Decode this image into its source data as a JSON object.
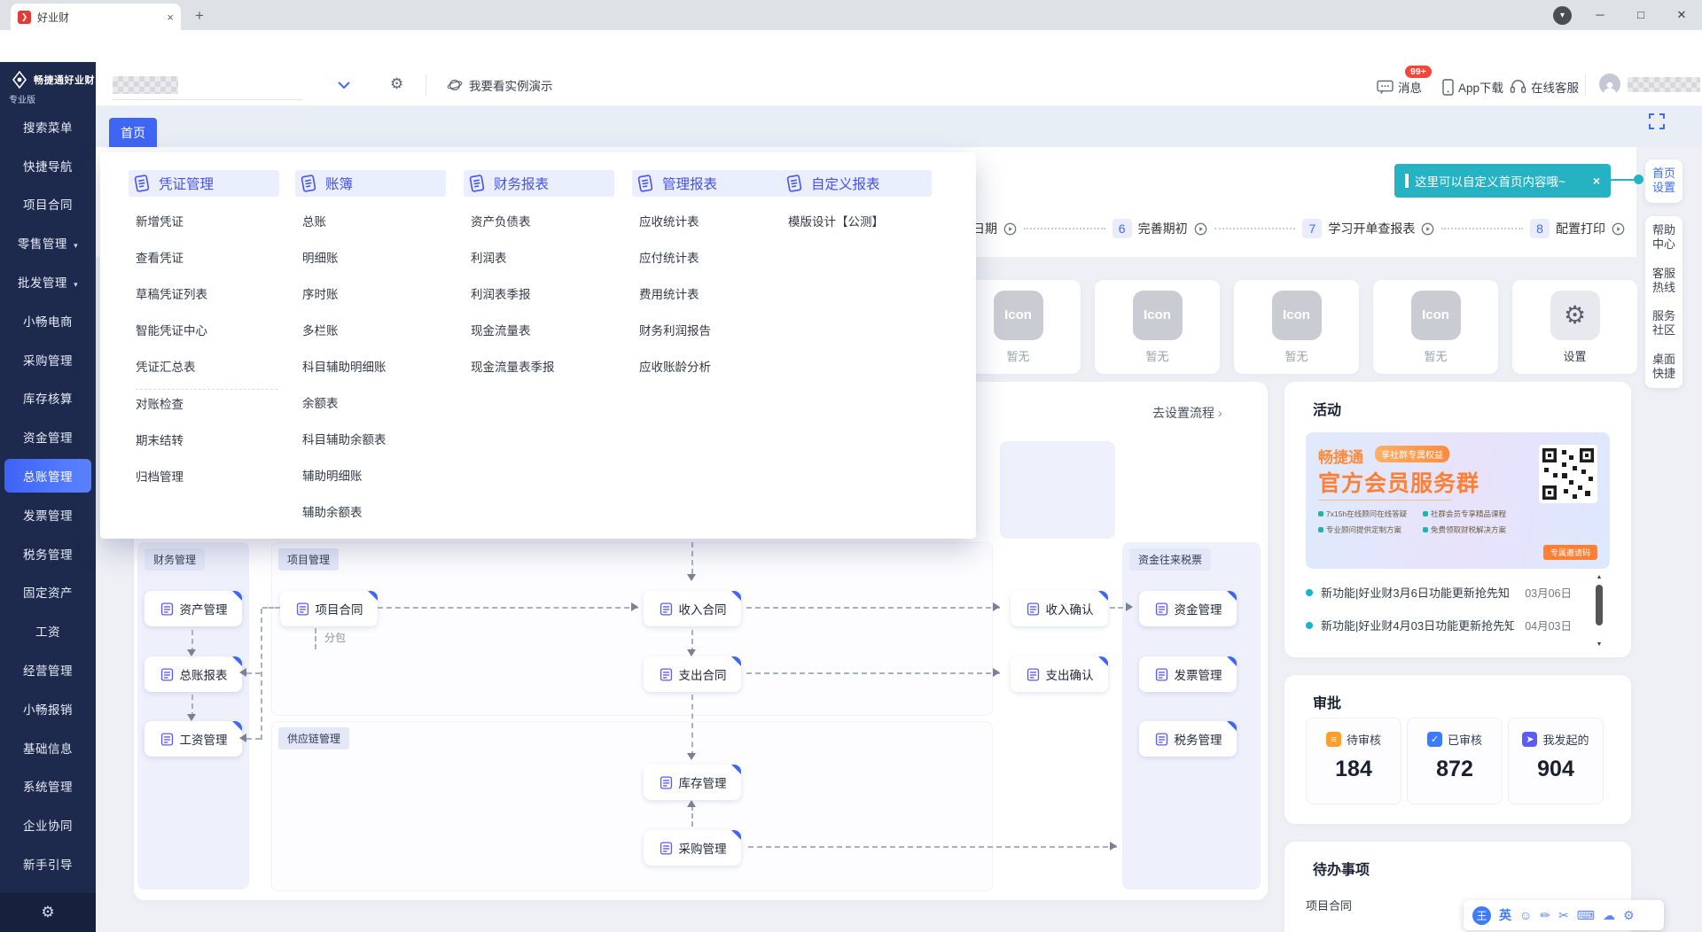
{
  "browser": {
    "tab_title": "好业财",
    "url": "cloud.chanjet.com/cc/u6d89qwnryel/57bfskchat/index.html#/home?pageId=home&pageParams=%7B\"activeFromTab\"%3Atrue%7D&tabId=home&_k=8ikxxp"
  },
  "header": {
    "demo_label": "我要看实例演示",
    "messages_label": "消息",
    "messages_badge": "99+",
    "app_download_label": "App下载",
    "online_service_label": "在线客服"
  },
  "sidebar": {
    "logo_title": "畅捷通好业财",
    "logo_sub": "专业版",
    "items": [
      {
        "label": "搜索菜单"
      },
      {
        "label": "快捷导航"
      },
      {
        "label": "项目合同"
      },
      {
        "label": "零售管理",
        "caret": true
      },
      {
        "label": "批发管理",
        "caret": true
      },
      {
        "label": "小畅电商"
      },
      {
        "label": "采购管理"
      },
      {
        "label": "库存核算"
      },
      {
        "label": "资金管理"
      },
      {
        "label": "总账管理",
        "active": true
      },
      {
        "label": "发票管理"
      },
      {
        "label": "税务管理"
      },
      {
        "label": "固定资产"
      },
      {
        "label": "工资"
      },
      {
        "label": "经营管理"
      },
      {
        "label": "小畅报销"
      },
      {
        "label": "基础信息"
      },
      {
        "label": "系统管理"
      },
      {
        "label": "企业协同"
      },
      {
        "label": "新手引导"
      }
    ]
  },
  "tabs": {
    "home": "首页"
  },
  "megamenu": {
    "columns": [
      {
        "title": "凭证管理",
        "divider_after": 4,
        "items": [
          "新增凭证",
          "查看凭证",
          "草稿凭证列表",
          "智能凭证中心",
          "凭证汇总表",
          "对账检查",
          "期末结转",
          "归档管理"
        ]
      },
      {
        "title": "账簿",
        "items": [
          "总账",
          "明细账",
          "序时账",
          "多栏账",
          "科目辅助明细账",
          "余额表",
          "科目辅助余额表",
          "辅助明细账",
          "辅助余额表"
        ]
      },
      {
        "title": "财务报表",
        "items": [
          "资产负债表",
          "利润表",
          "利润表季报",
          "现金流量表",
          "现金流量表季报"
        ]
      },
      {
        "title": "管理报表",
        "items": [
          "应收统计表",
          "应付统计表",
          "费用统计表",
          "财务利润报告",
          "应收账龄分析"
        ]
      },
      {
        "title": "自定义报表",
        "items": [
          "模版设计【公测】"
        ]
      }
    ]
  },
  "steps": {
    "items": [
      {
        "num": "",
        "label": "日期"
      },
      {
        "num": "6",
        "label": "完善期初"
      },
      {
        "num": "7",
        "label": "学习开单查报表"
      },
      {
        "num": "8",
        "label": "配置打印"
      }
    ]
  },
  "tooltip": {
    "text": "这里可以自定义首页内容哦~",
    "close": "×"
  },
  "quickbar": {
    "active": "首页设置",
    "items": [
      "帮助中心",
      "客服热线",
      "服务社区",
      "桌面快捷"
    ]
  },
  "icon_cards": {
    "placeholder": "Icon",
    "empty_label": "暂无",
    "settings_label": "设置"
  },
  "flow": {
    "go_setup": "去设置流程",
    "subcontract_label": "分包",
    "groups": {
      "finance": {
        "label": "财务管理",
        "nodes": [
          "资产管理",
          "总账报表",
          "工资管理"
        ]
      },
      "project": {
        "label": "项目管理",
        "nodes": [
          "项目合同",
          "收入合同",
          "支出合同"
        ]
      },
      "confirm": {
        "nodes": [
          "收入确认",
          "支出确认"
        ]
      },
      "supply": {
        "label": "供应链管理",
        "nodes": [
          "库存管理",
          "采购管理"
        ]
      },
      "fund": {
        "label": "资金往来税票",
        "nodes": [
          "资金管理",
          "发票管理",
          "税务管理"
        ]
      }
    }
  },
  "activity": {
    "title": "活动",
    "banner": {
      "brand": "畅捷通",
      "badge": "享社群专属权益",
      "headline": "官方会员服务群",
      "bullets": [
        "7x15h在线顾问在线答疑",
        "社群会员专享精品课程",
        "专业顾问提供定制方案",
        "免费领取财税解决方案"
      ],
      "qr_tag": "专属邀请码"
    },
    "news": [
      {
        "text": "新功能|好业财3月6日功能更新抢先知",
        "date": "03月06日"
      },
      {
        "text": "新功能|好业财4月03日功能更新抢先知",
        "date": "04月03日"
      }
    ]
  },
  "approval": {
    "title": "审批",
    "stats": [
      {
        "label": "待审核",
        "value": "184",
        "color": "#ff9e2d"
      },
      {
        "label": "已审核",
        "value": "872",
        "color": "#3e7bfa"
      },
      {
        "label": "我发起的",
        "value": "904",
        "color": "#5b5bf5"
      }
    ]
  },
  "todo": {
    "title": "待办事项",
    "items": [
      "项目合同"
    ]
  },
  "ime": {
    "logo": "王",
    "lang": "英"
  },
  "colors": {
    "accent": "#3f66f2",
    "sidebar": "#1d2a4d",
    "teal": "#25b2c3"
  }
}
